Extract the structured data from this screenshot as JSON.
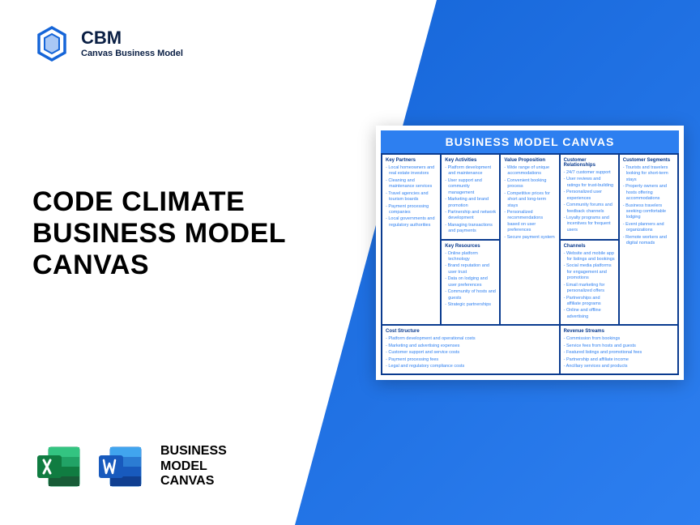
{
  "logo": {
    "title": "CBM",
    "subtitle": "Canvas Business Model"
  },
  "mainTitle": "CODE CLIMATE BUSINESS MODEL CANVAS",
  "appLabel": "BUSINESS MODEL CANVAS",
  "canvas": {
    "header": "BUSINESS MODEL CANVAS",
    "sections": {
      "keyPartners": {
        "title": "Key Partners",
        "items": [
          "Local homeowners and real estate investors",
          "Cleaning and maintenance services",
          "Travel agencies and tourism boards",
          "Payment processing companies",
          "Local governments and regulatory authorities"
        ]
      },
      "keyActivities": {
        "title": "Key Activities",
        "items": [
          "Platform development and maintenance",
          "User support and community management",
          "Marketing and brand promotion",
          "Partnership and network development",
          "Managing transactions and payments"
        ]
      },
      "keyResources": {
        "title": "Key Resources",
        "items": [
          "Online platform technology",
          "Brand reputation and user trust",
          "Data on lodging and user preferences",
          "Community of hosts and guests",
          "Strategic partnerships"
        ]
      },
      "valueProp": {
        "title": "Value Proposition",
        "items": [
          "Wide range of unique accommodations",
          "Convenient booking process",
          "Competitive prices for short and long-term stays",
          "Personalized recommendations based on user preferences",
          "Secure payment system"
        ]
      },
      "custRel": {
        "title": "Customer Relationships",
        "items": [
          "24/7 customer support",
          "User reviews and ratings for trust-building",
          "Personalized user experiences",
          "Community forums and feedback channels",
          "Loyalty programs and incentives for frequent users"
        ]
      },
      "channels": {
        "title": "Channels",
        "items": [
          "Website and mobile app for listings and bookings",
          "Social media platforms for engagement and promotions",
          "Email marketing for personalized offers",
          "Partnerships and affiliate programs",
          "Online and offline advertising"
        ]
      },
      "custSeg": {
        "title": "Customer Segments",
        "items": [
          "Tourists and travelers looking for short-term stays",
          "Property owners and hosts offering accommodations",
          "Business travelers seeking comfortable lodging",
          "Event planners and organizations",
          "Remote workers and digital nomads"
        ]
      },
      "cost": {
        "title": "Cost Structure",
        "items": [
          "Platform development and operational costs",
          "Marketing and advertising expenses",
          "Customer support and service costs",
          "Payment processing fees",
          "Legal and regulatory compliance costs"
        ]
      },
      "revenue": {
        "title": "Revenue Streams",
        "items": [
          "Commission from bookings",
          "Service fees from hosts and guests",
          "Featured listings and promotional fees",
          "Partnership and affiliate income",
          "Ancillary services and products"
        ]
      }
    }
  },
  "colors": {
    "brand": "#1565d8",
    "brandLight": "#2d7ff0",
    "excel": "#107c41",
    "word": "#185abd"
  }
}
